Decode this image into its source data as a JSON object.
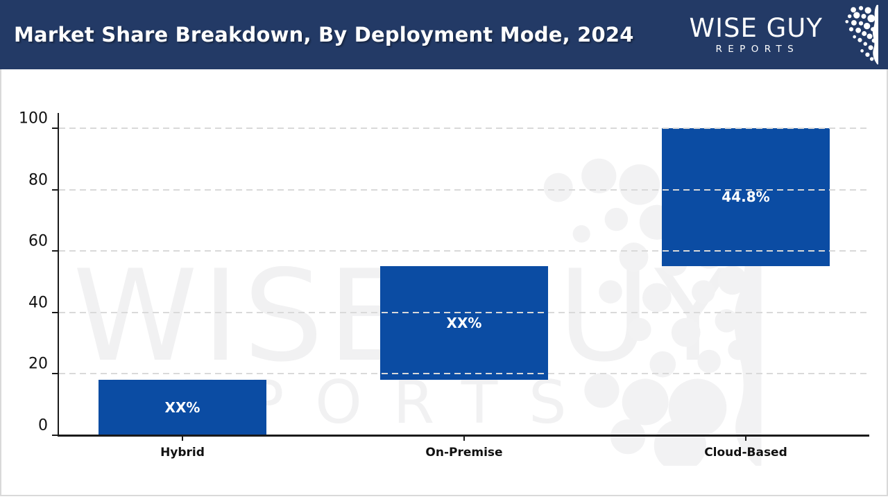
{
  "header": {
    "title": "Market Share Breakdown, By Deployment Mode, 2024",
    "bg_color": "#233a66",
    "logo": {
      "line1": "WISE GUY",
      "line2": "REPORTS",
      "face_icon": "dotted-face-profile"
    }
  },
  "watermark": {
    "line1": "WISE GUY",
    "line2": "REPORTS",
    "face_icon": "dotted-face-profile"
  },
  "chart_data": {
    "type": "bar",
    "subtype": "floating-waterfall",
    "title": "Market Share Breakdown, By Deployment Mode, 2024",
    "categories": [
      "Hybrid",
      "On-Premise",
      "Cloud-Based"
    ],
    "series": [
      {
        "name": "Market share (%)",
        "segments": [
          {
            "category": "Hybrid",
            "start": 0,
            "end": 18,
            "value": 18,
            "label": "XX%"
          },
          {
            "category": "On-Premise",
            "start": 18,
            "end": 55.2,
            "value": 37.2,
            "label": "XX%"
          },
          {
            "category": "Cloud-Based",
            "start": 55.2,
            "end": 100,
            "value": 44.8,
            "label": "44.8%"
          }
        ]
      }
    ],
    "xlabel": "",
    "ylabel": "",
    "ylim": [
      0,
      105
    ],
    "yticks": [
      0,
      20,
      40,
      60,
      80,
      100
    ],
    "grid": "horizontal-dashed",
    "grid_above_bars": true,
    "legend": "none",
    "bar_color": "#0b4ca3",
    "bar_label_color": "#ffffff",
    "axis_color": "#1a1a1a",
    "gridline_color": "#d9d9d9",
    "frame_border_color": "#d9d9d9"
  }
}
